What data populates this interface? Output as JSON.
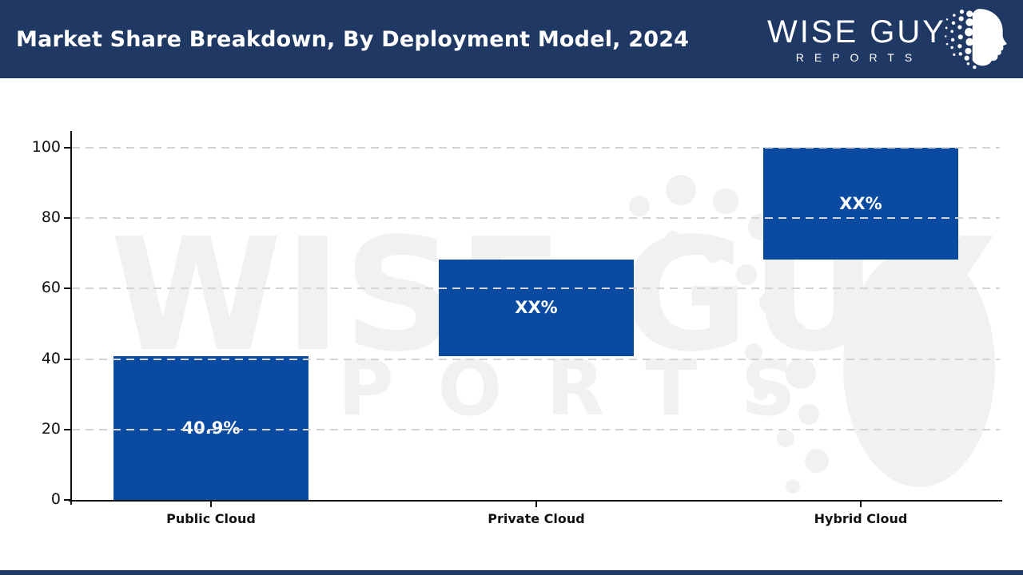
{
  "header": {
    "title": "Market Share Breakdown, By Deployment Model, 2024",
    "background_color": "#203864",
    "logo": {
      "line1": "WISE GUY",
      "line2": "REPORTS"
    }
  },
  "watermark": {
    "line1": "WISE GUY",
    "line2": "REPORTS"
  },
  "footer": {
    "bar_color": "#203864"
  },
  "chart_data": {
    "type": "bar",
    "subtype": "floating-segment (waterfall style market share)",
    "title": "Market Share Breakdown, By Deployment Model, 2024",
    "categories": [
      "Public Cloud",
      "Private Cloud",
      "Hybrid Cloud"
    ],
    "segments": [
      {
        "category": "Public Cloud",
        "start": 0,
        "end": 40.9,
        "label": "40.9%"
      },
      {
        "category": "Private Cloud",
        "start": 40.9,
        "end": 68.2,
        "label": "XX%"
      },
      {
        "category": "Hybrid Cloud",
        "start": 68.2,
        "end": 100,
        "label": "XX%"
      }
    ],
    "xlabel": "",
    "ylabel": "",
    "ylim": [
      0,
      100
    ],
    "yticks": [
      0,
      20,
      40,
      60,
      80,
      100
    ],
    "grid": "horizontal-dashed",
    "grid_color": "#d4d4d4",
    "bar_color": "#0a4aa0",
    "bar_label_color": "#ffffff",
    "legend": "none"
  }
}
